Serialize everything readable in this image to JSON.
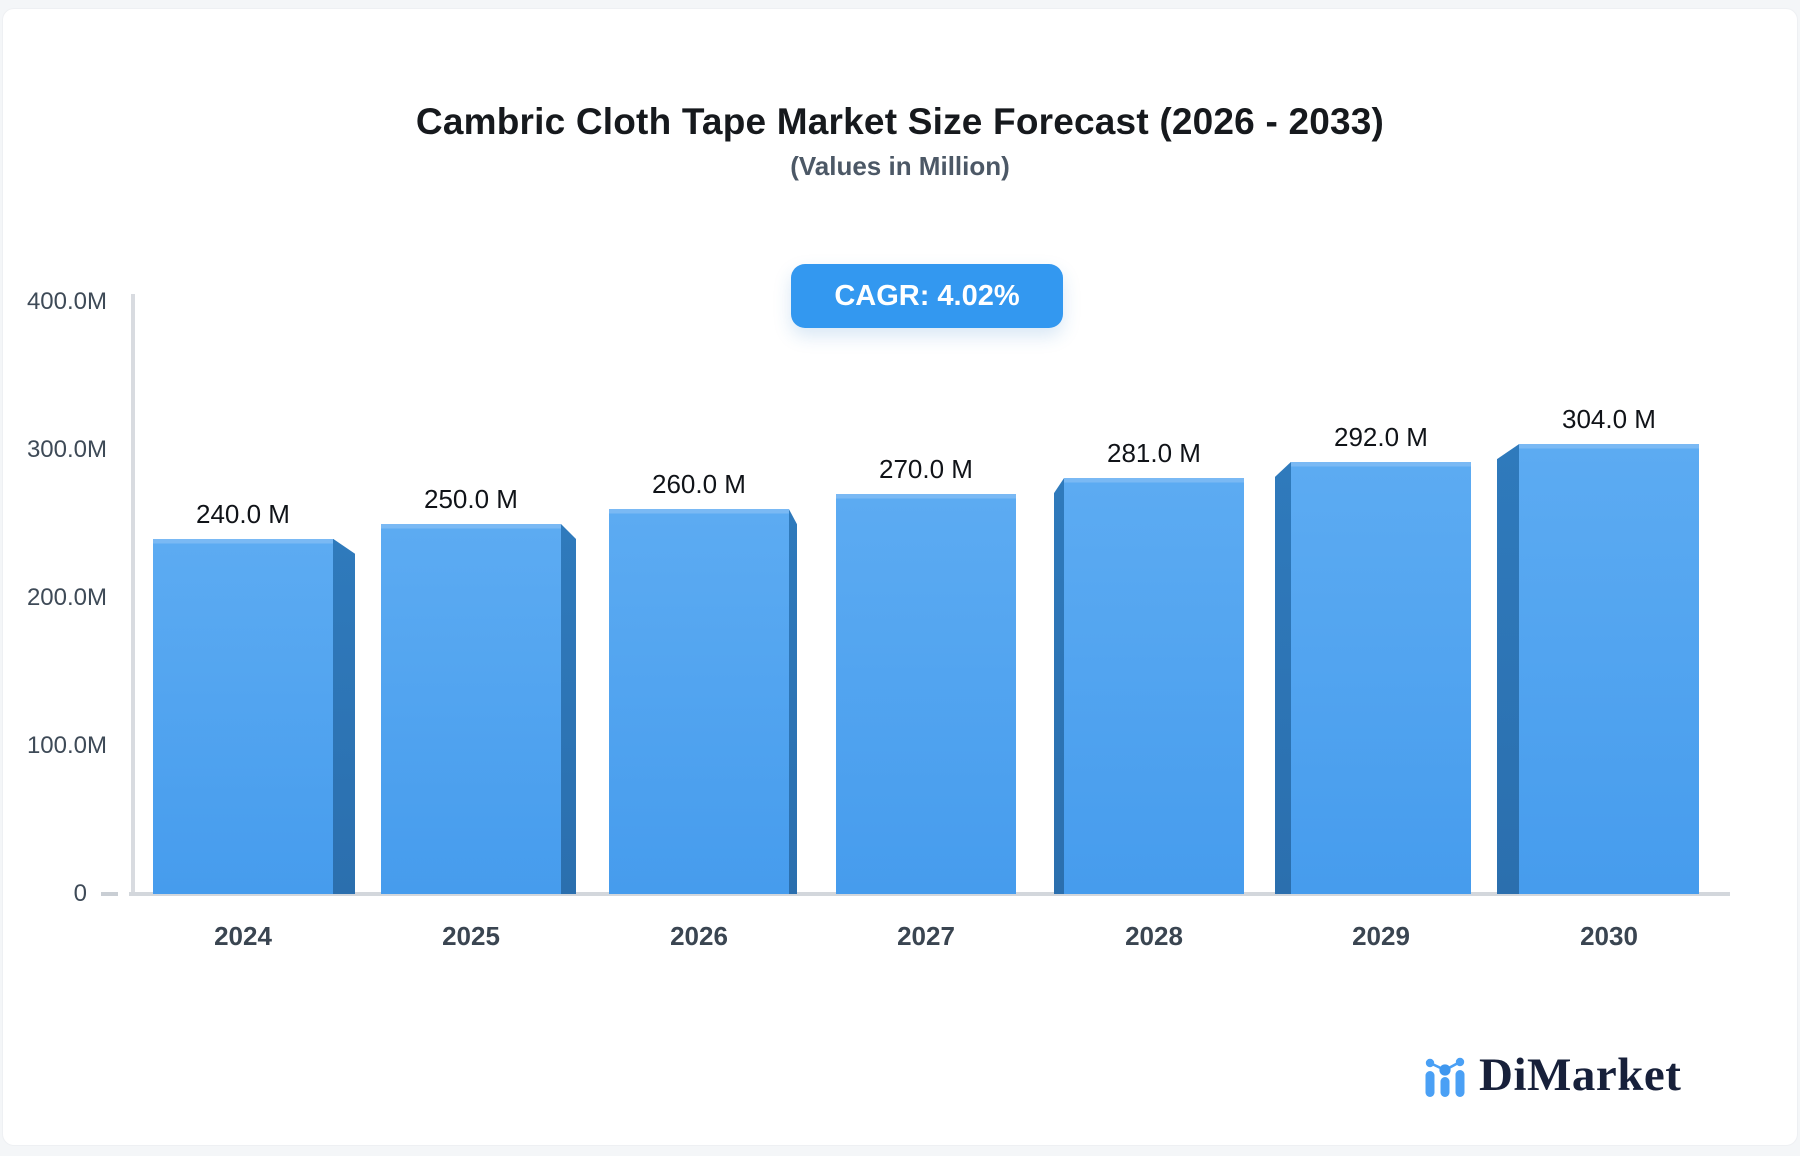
{
  "header": {
    "title": "Cambric Cloth Tape Market Size Forecast (2026 - 2033)",
    "subtitle": "(Values in Million)",
    "cagr_badge": "CAGR: 4.02%"
  },
  "chart_data": {
    "type": "bar",
    "title": "Cambric Cloth Tape Market Size Forecast (2026 - 2033)",
    "subtitle": "(Values in Million)",
    "categories": [
      "2024",
      "2025",
      "2026",
      "2027",
      "2028",
      "2029",
      "2030"
    ],
    "values": [
      240,
      250,
      260,
      270,
      281,
      292,
      304
    ],
    "value_labels": [
      "240.0 M",
      "250.0 M",
      "260.0 M",
      "270.0 M",
      "281.0 M",
      "292.0 M",
      "304.0 M"
    ],
    "y_ticks": [
      "400.0M",
      "300.0M",
      "200.0M",
      "100.0M",
      "0"
    ],
    "ylim": [
      0,
      400
    ],
    "unit": "Million",
    "cagr": "4.02%",
    "legend": "none",
    "grid": "off",
    "colors": {
      "bar_front_top": "#5cabf2",
      "bar_front_bottom": "#469ced",
      "bar_side": "#2d76b8",
      "axis": "#d5d9de",
      "badge": "#3398f0"
    }
  },
  "footer": {
    "brand": "DiMarket"
  }
}
